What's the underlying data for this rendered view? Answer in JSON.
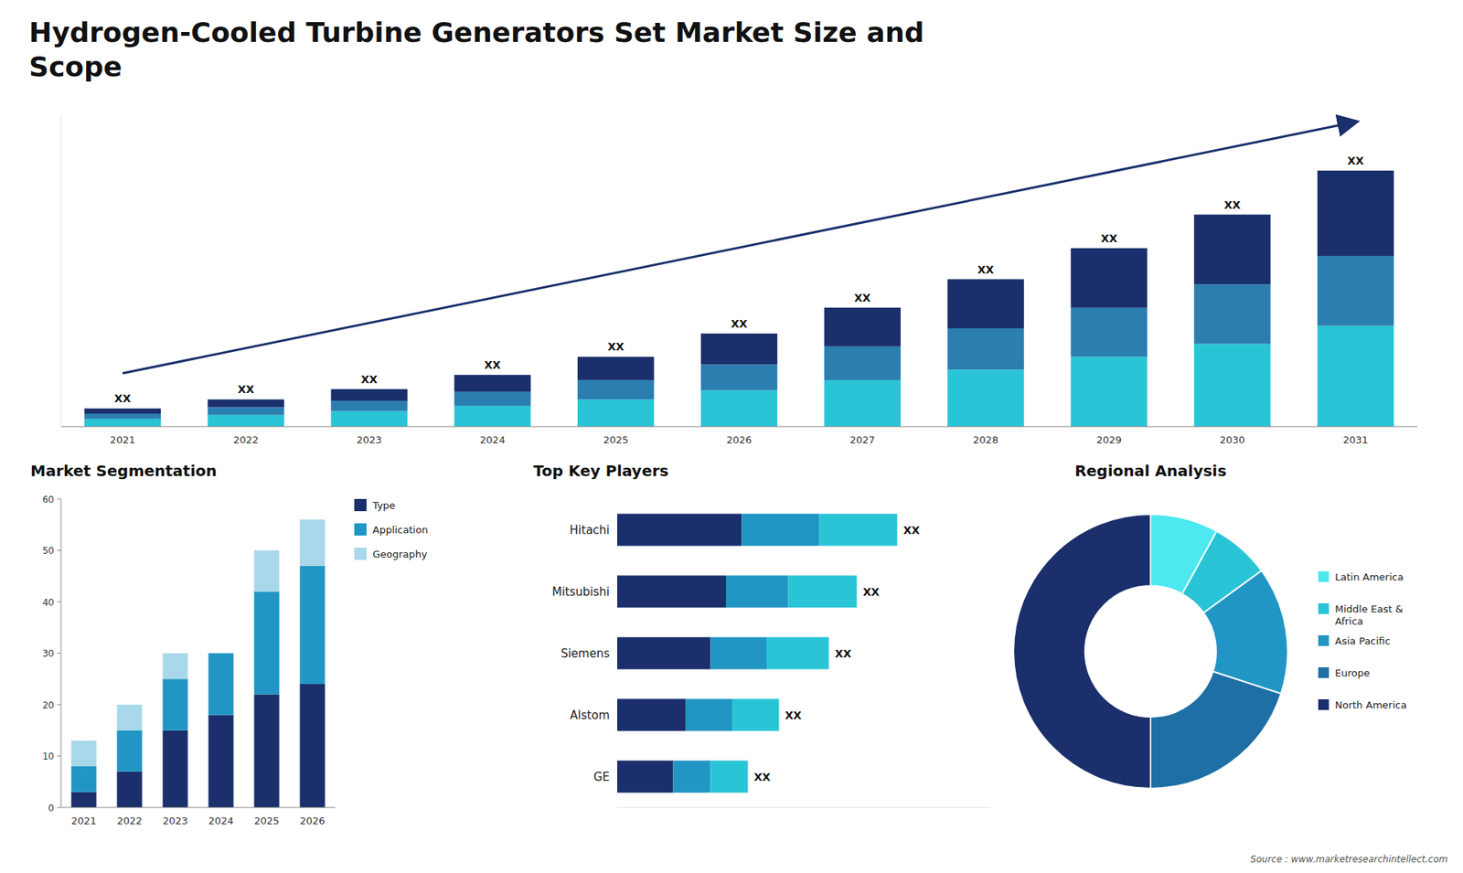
{
  "chart_data": [
    {
      "type": "bar",
      "title": "Hydrogen-Cooled Turbine Generators Set Market Size and\nScope",
      "categories": [
        "2021",
        "2022",
        "2023",
        "2024",
        "2025",
        "2026",
        "2027",
        "2028",
        "2029",
        "2030",
        "2031"
      ],
      "series": [
        {
          "color": "#29c5d6",
          "values": [
            3,
            4.5,
            6,
            8,
            10.5,
            14,
            18,
            22,
            27,
            32,
            39
          ]
        },
        {
          "color": "#2b7eb0",
          "values": [
            2,
            3,
            4,
            5.5,
            7.5,
            10,
            13,
            16,
            19,
            23,
            27
          ]
        },
        {
          "color": "#1a2f6b",
          "values": [
            2,
            3,
            4.5,
            6.5,
            9,
            12,
            15,
            19,
            23,
            27,
            33
          ]
        }
      ],
      "stacked": true,
      "ylim": [
        0,
        120.78
      ],
      "yticks": [],
      "tick_labels": "x",
      "grid": false,
      "annotations": [
        "XX",
        "XX",
        "XX",
        "XX",
        "XX",
        "XX",
        "XX",
        "XX",
        "XX",
        "XX",
        "XX"
      ]
    },
    {
      "type": "bar",
      "title": "Market Segmentation",
      "categories": [
        "2021",
        "2022",
        "2023",
        "2024",
        "2025",
        "2026"
      ],
      "series": [
        {
          "name": "Type",
          "color": "#1a2f6b",
          "values": [
            3,
            7,
            15,
            18,
            22,
            24
          ]
        },
        {
          "name": "Application",
          "color": "#2196c4",
          "values": [
            5,
            8,
            10,
            12,
            20,
            23
          ]
        },
        {
          "name": "Geography",
          "color": "#a8d8ea",
          "values": [
            5,
            5,
            5,
            0,
            8,
            9
          ]
        }
      ],
      "stacked": true,
      "ylim": [
        0,
        60
      ],
      "yticks": [
        0,
        10,
        20,
        30,
        40,
        50,
        60
      ],
      "legend": "right",
      "grid": false
    },
    {
      "type": "bar",
      "orientation": "horizontal",
      "title": "Top Key Players",
      "categories": [
        "Hitachi",
        "Mitsubishi",
        "Siemens",
        "Alstom",
        "GE"
      ],
      "series": [
        {
          "color": "#1a2f6b",
          "values": [
            0.4,
            0.35,
            0.3,
            0.22,
            0.18
          ]
        },
        {
          "color": "#2196c4",
          "values": [
            0.25,
            0.2,
            0.18,
            0.15,
            0.12
          ]
        },
        {
          "color": "#29c5d6",
          "values": [
            0.25,
            0.22,
            0.2,
            0.15,
            0.12
          ]
        }
      ],
      "stacked": true,
      "xlim": [
        0,
        1.2
      ],
      "xticks": [],
      "tick_labels": "y",
      "grid": false,
      "annotations": [
        "XX",
        "XX",
        "XX",
        "XX",
        "XX"
      ]
    },
    {
      "type": "pie",
      "title": "Regional Analysis",
      "categories": [
        "Latin America",
        "Middle East &\nAfrica",
        "Asia Pacific",
        "Europe",
        "North America"
      ],
      "values": [
        8,
        7,
        15,
        20,
        50
      ],
      "colors": [
        "#4de8f0",
        "#29c5d6",
        "#2196c4",
        "#1e6fa5",
        "#1a2f6b"
      ],
      "legend": "right",
      "annotations": [
        "Source : www.marketresearchintellect.com"
      ]
    }
  ]
}
